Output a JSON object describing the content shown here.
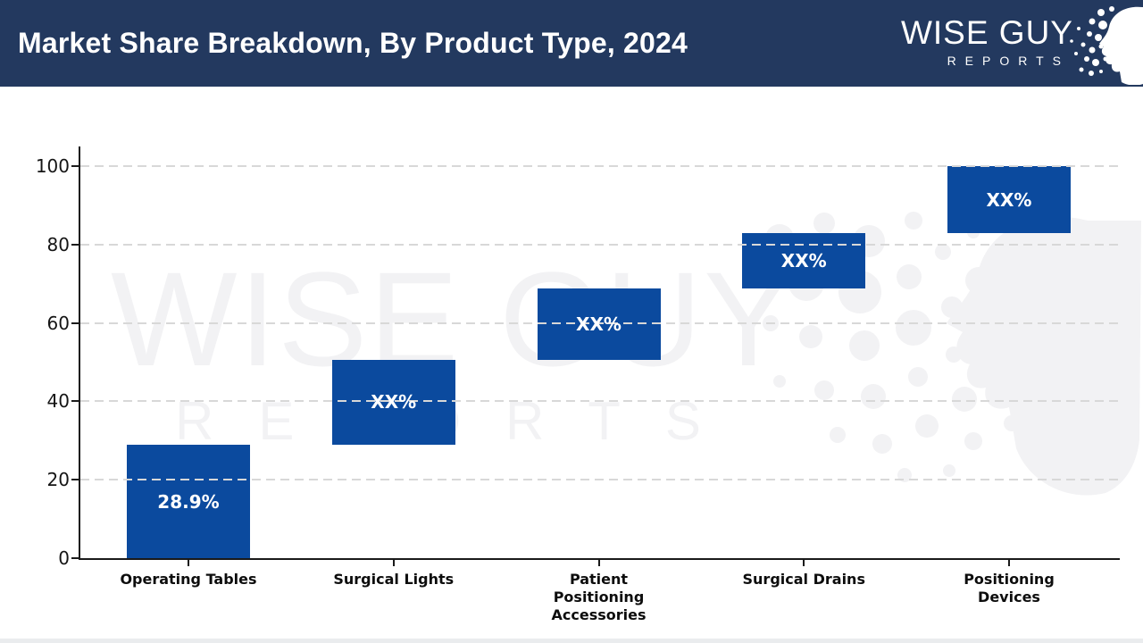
{
  "header": {
    "title": "Market Share Breakdown, By Product Type, 2024",
    "logo": {
      "line1": "WISE GUY",
      "line2": "REPORTS"
    }
  },
  "watermark": {
    "line1": "WISE GUY",
    "line2": "REPORTS"
  },
  "chart_data": {
    "type": "bar",
    "subtype": "waterfall",
    "title": "Market Share Breakdown, By Product Type, 2024",
    "categories": [
      "Operating Tables",
      "Surgical Lights",
      "Patient Positioning Accessories",
      "Surgical Drains",
      "Positioning Devices"
    ],
    "bars": [
      {
        "category": "Operating Tables",
        "display": "Operating Tables",
        "start": 0,
        "end": 28.9,
        "label": "28.9%"
      },
      {
        "category": "Surgical Lights",
        "display": "Surgical Lights",
        "start": 28.9,
        "end": 50.6,
        "label": "XX%"
      },
      {
        "category": "Patient Positioning Accessories",
        "display": "Patient\nPositioning\nAccessories",
        "start": 50.6,
        "end": 68.7,
        "label": "XX%"
      },
      {
        "category": "Surgical Drains",
        "display": "Surgical Drains",
        "start": 68.7,
        "end": 82.9,
        "label": "XX%"
      },
      {
        "category": "Positioning Devices",
        "display": "Positioning\nDevices",
        "start": 82.9,
        "end": 100,
        "label": "XX%"
      }
    ],
    "ylim": [
      0,
      100
    ],
    "yticks": [
      0,
      20,
      40,
      60,
      80,
      100
    ],
    "grid": "horizontal-dashed",
    "legend": "none",
    "colors": {
      "bar": "#0b4a9e",
      "bar_label": "#ffffff",
      "header_background": "#23395f",
      "axis": "#1a1a1a",
      "watermark": "#f2f2f4",
      "background": "#ffffff"
    }
  }
}
